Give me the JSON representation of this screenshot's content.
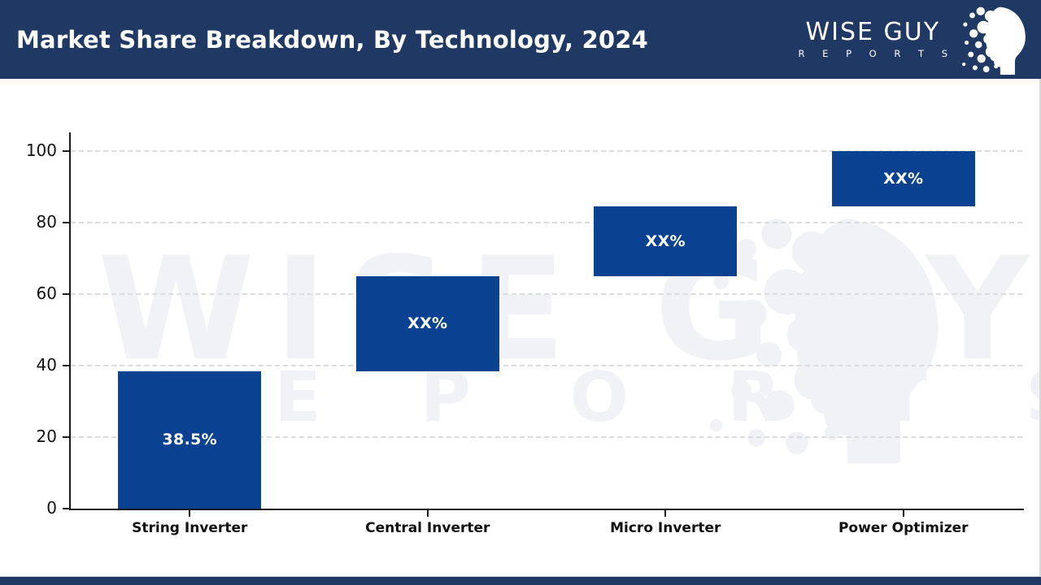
{
  "header": {
    "title": "Market Share Breakdown, By Technology, 2024",
    "logo": {
      "name": "Wise Guy Reports",
      "line1": "WISE GUY",
      "line2": "R E P O R T S"
    }
  },
  "watermark": {
    "line1": "WISE GUY",
    "line2": "R E P O R T S"
  },
  "colors": {
    "header_bg": "#1f3864",
    "footer_bg": "#1f3864",
    "bar_fill": "#0a4191",
    "bar_label": "#ffffff",
    "axis": "#1a1a1a",
    "gridline": "#dcdcdc",
    "watermark": "#f1f2f5"
  },
  "chart_data": {
    "type": "bar",
    "subtype": "floating-waterfall",
    "title": "Market Share Breakdown, By Technology, 2024",
    "categories": [
      "String Inverter",
      "Central Inverter",
      "Micro Inverter",
      "Power Optimizer"
    ],
    "segments": [
      {
        "category": "String Inverter",
        "start": 0,
        "end": 38.5,
        "label": "38.5%"
      },
      {
        "category": "Central Inverter",
        "start": 38.5,
        "end": 65,
        "label": "XX%"
      },
      {
        "category": "Micro Inverter",
        "start": 65,
        "end": 84.5,
        "label": "XX%"
      },
      {
        "category": "Power Optimizer",
        "start": 84.5,
        "end": 100,
        "label": "XX%"
      }
    ],
    "yticks": [
      0,
      20,
      40,
      60,
      80,
      100
    ],
    "ylim": [
      0,
      107
    ],
    "xlabel": "",
    "ylabel": "",
    "grid": "horizontal-dashed",
    "legend": "none",
    "bar_color": "#0a4191"
  }
}
